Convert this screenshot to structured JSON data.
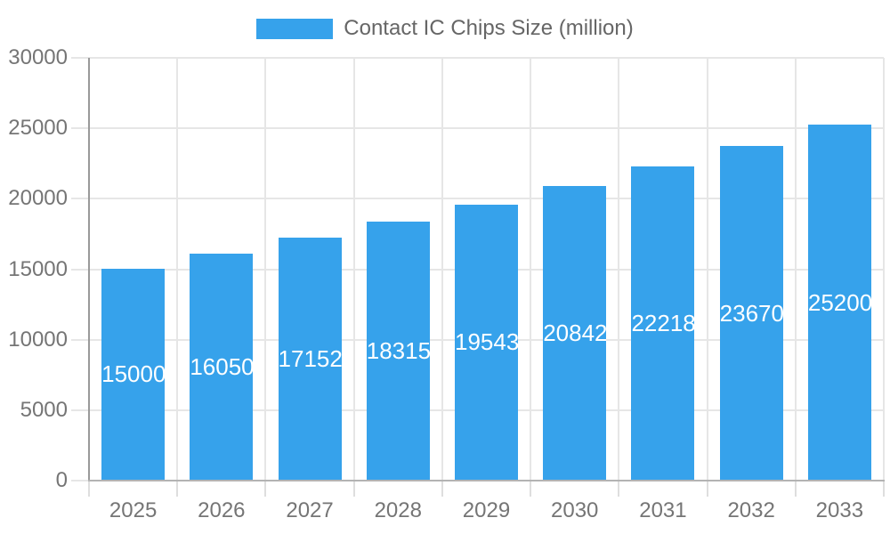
{
  "page": {
    "background": "#ffffff"
  },
  "legend": {
    "label": "Contact IC Chips Size (million)",
    "swatch_color": "#36a2eb",
    "position": "top-center"
  },
  "chart_data": {
    "type": "bar",
    "title": "Contact IC Chips Size (million)",
    "categories": [
      "2025",
      "2026",
      "2027",
      "2028",
      "2029",
      "2030",
      "2031",
      "2032",
      "2033"
    ],
    "values": [
      15000,
      16050,
      17152,
      18315,
      19543,
      20842,
      22218,
      23670,
      25200
    ],
    "xlabel": "",
    "ylabel": "",
    "ylim": [
      0,
      30000
    ],
    "yticks": [
      0,
      5000,
      10000,
      15000,
      20000,
      25000,
      30000
    ],
    "grid": "horizontal and vertical, light gray",
    "legend_position": "top-center",
    "bar_color": "#36a2eb",
    "value_label_color": "#ffffff",
    "axis_text_color": "#757575",
    "grid_color": "#e6e6e6",
    "value_labels": "centered vertically inside bars"
  }
}
